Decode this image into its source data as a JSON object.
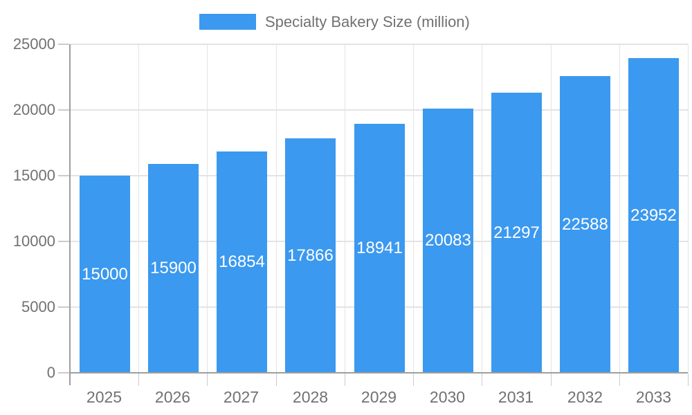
{
  "legend": {
    "label": "Specialty Bakery Size (million)",
    "position": "top"
  },
  "chart_data": {
    "type": "bar",
    "title": "Specialty Bakery Size (million)",
    "categories": [
      "2025",
      "2026",
      "2027",
      "2028",
      "2029",
      "2030",
      "2031",
      "2032",
      "2033"
    ],
    "values": [
      15000,
      15900,
      16854,
      17866,
      18941,
      20083,
      21297,
      22588,
      23952
    ],
    "xlabel": "",
    "ylabel": "",
    "ylim": [
      0,
      25000
    ],
    "yticks": [
      0,
      5000,
      10000,
      15000,
      20000,
      25000
    ],
    "grid": true,
    "grid_vertical": true,
    "legend_position": "top",
    "value_labels": "inside-white"
  },
  "colors": {
    "bar": "#3B99EF",
    "grid_line": "#E3E3E3",
    "axis_line": "#9E9E9E",
    "tick": "#CBCBCB",
    "axis_text": "#717171",
    "value_label": "#FFFFFF",
    "background": "#FFFFFF"
  }
}
